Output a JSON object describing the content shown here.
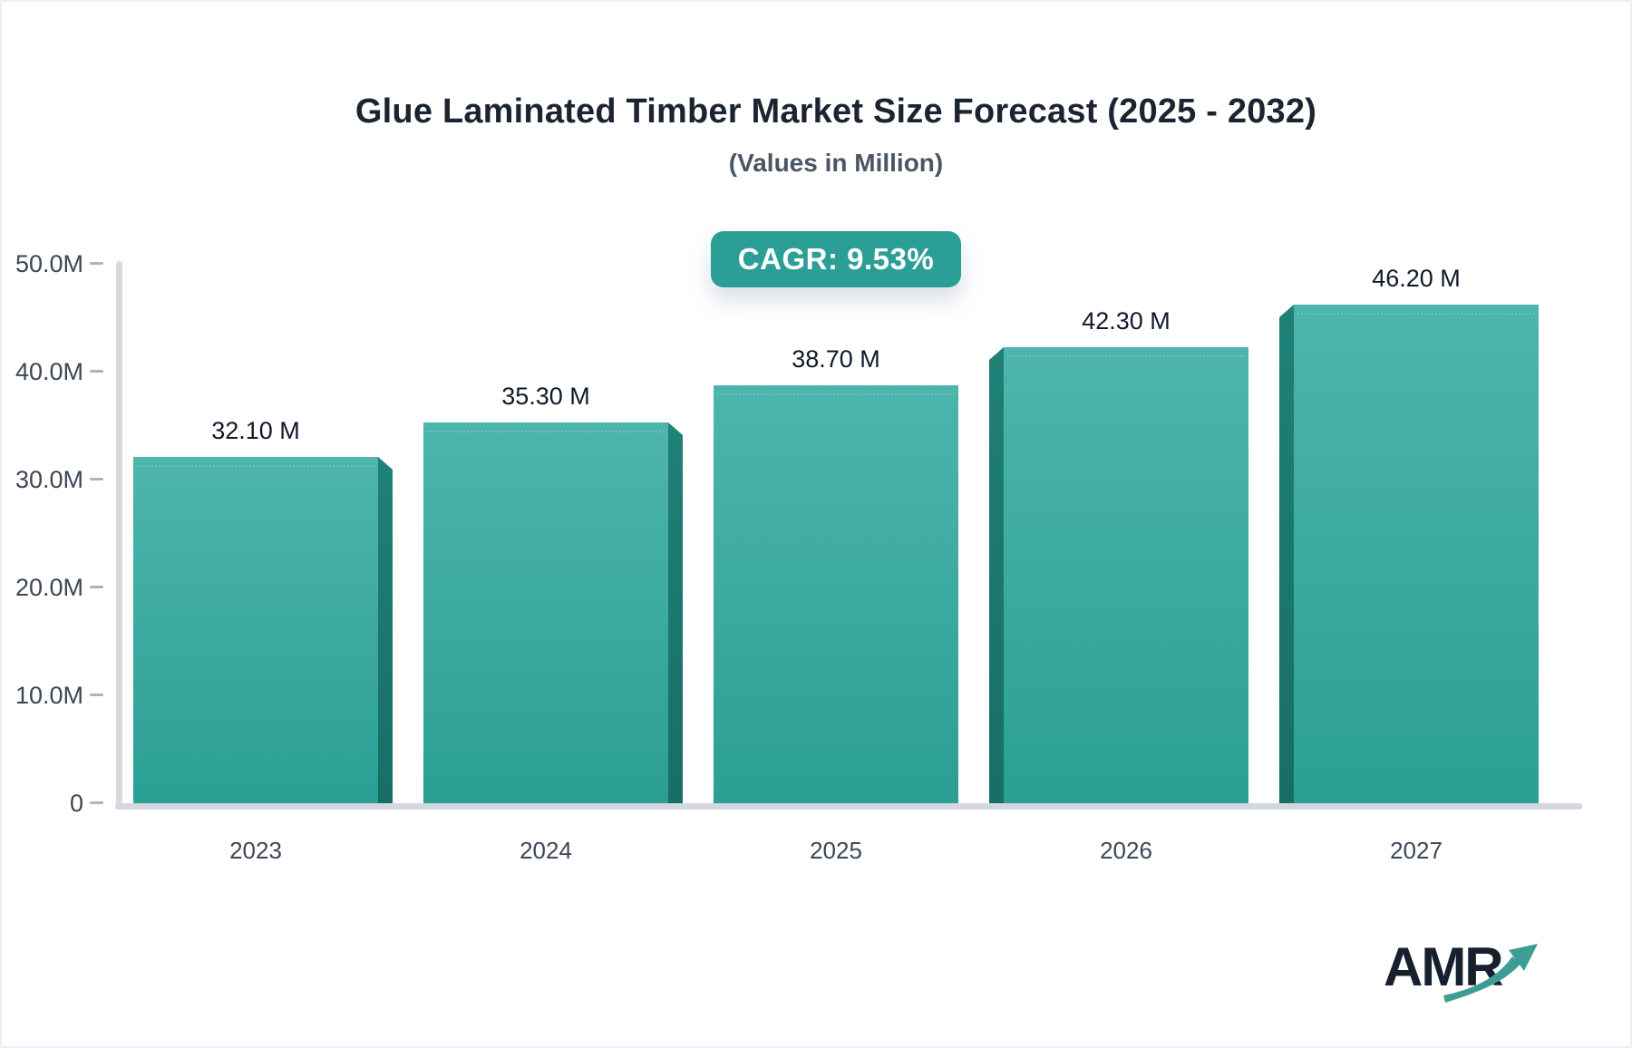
{
  "header": {
    "title": "Glue Laminated Timber Market Size Forecast (2025 - 2032)",
    "subtitle": "(Values in Million)"
  },
  "badge": {
    "label": "CAGR: 9.53%",
    "color": "#2b9e96"
  },
  "chart_data": {
    "type": "bar",
    "title": "Glue Laminated Timber Market Size Forecast (2025 - 2032)",
    "subtitle": "(Values in Million)",
    "categories": [
      "2023",
      "2024",
      "2025",
      "2026",
      "2027"
    ],
    "values": [
      32.1,
      35.3,
      38.7,
      42.3,
      46.2
    ],
    "value_labels": [
      "32.10 M",
      "35.30 M",
      "38.70 M",
      "42.30 M",
      "46.20 M"
    ],
    "annotation": "CAGR: 9.53%",
    "xlabel": "",
    "ylabel": "",
    "ylim": [
      0,
      50
    ],
    "yticks": [
      {
        "label": "50.0M",
        "value": 50
      },
      {
        "label": "40.0M",
        "value": 40
      },
      {
        "label": "30.0M",
        "value": 30
      },
      {
        "label": "20.0M",
        "value": 20
      },
      {
        "label": "10.0M",
        "value": 10
      },
      {
        "label": "0",
        "value": 0
      }
    ],
    "grid": false,
    "legend": false,
    "bar_color_top": "#4db5ac",
    "bar_color_bottom": "#2b9f93",
    "bar_side_color": "#1f8177",
    "axis_color": "#d6d8e0"
  },
  "logo": {
    "text": "AMR",
    "text_color": "#16202e",
    "arrow_color": "#3d9d95"
  }
}
